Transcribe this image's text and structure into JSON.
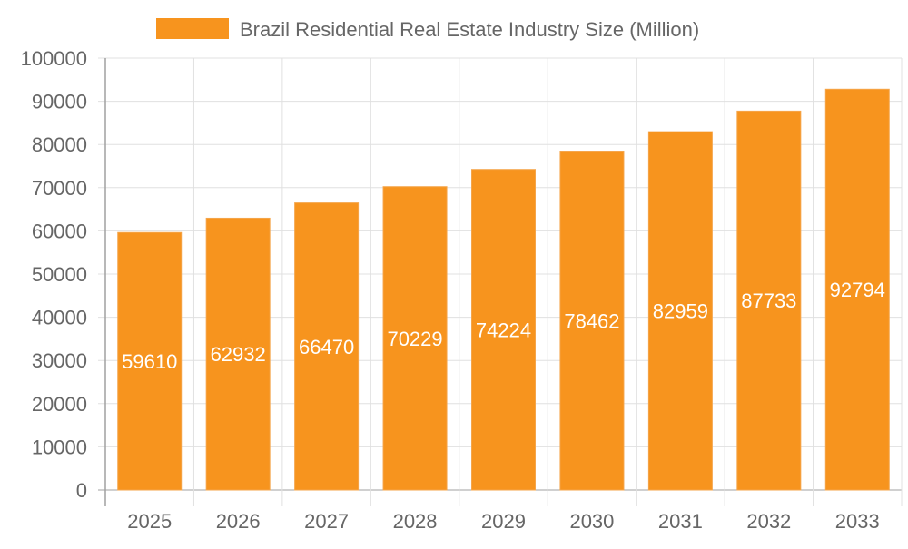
{
  "chart_data": {
    "type": "bar",
    "title": "",
    "xlabel": "",
    "ylabel": "",
    "categories": [
      "2025",
      "2026",
      "2027",
      "2028",
      "2029",
      "2030",
      "2031",
      "2032",
      "2033"
    ],
    "series": [
      {
        "name": "Brazil Residential Real Estate Industry Size (Million)",
        "values": [
          59610,
          62932,
          66470,
          70229,
          74224,
          78462,
          82959,
          87733,
          92794
        ]
      }
    ],
    "ylim": [
      0,
      100000
    ],
    "yticks": [
      0,
      10000,
      20000,
      30000,
      40000,
      50000,
      60000,
      70000,
      80000,
      90000,
      100000
    ],
    "grid": true,
    "legend_position": "top",
    "data_labels": true,
    "colors": {
      "bar": "#F7941E",
      "grid": "#E0E0E0",
      "axis": "#A0A0A0",
      "text": "#666666",
      "label": "#FFFFFF"
    }
  }
}
